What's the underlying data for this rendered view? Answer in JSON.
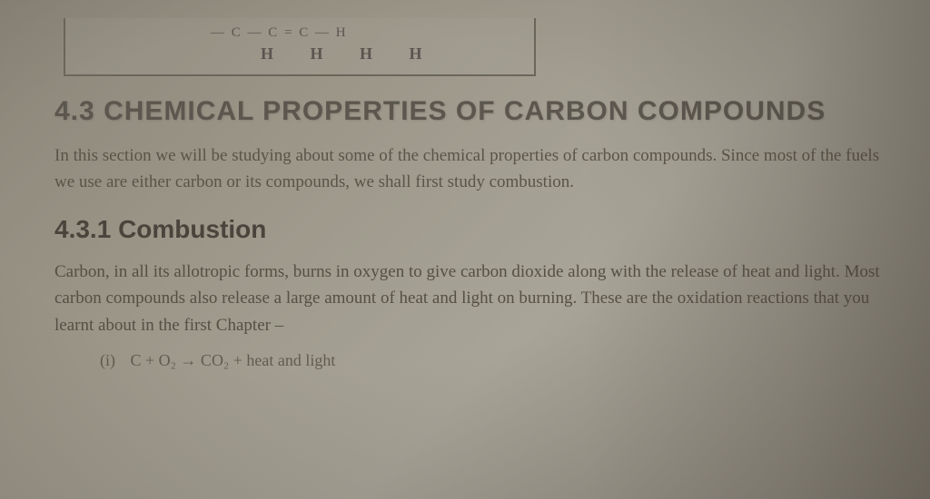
{
  "formula": {
    "top_fragment": "— C — C = C — H",
    "bottom_row": "H  H  H  H"
  },
  "section": {
    "number": "4.3",
    "title": "CHEMICAL PROPERTIES OF CARBON COMPOUNDS"
  },
  "intro": {
    "text": "In this section we will be studying about some of the chemical properties of carbon compounds. Since most of the fuels we use are either carbon or its compounds, we shall first study combustion."
  },
  "subsection": {
    "number": "4.3.1",
    "title": "Combustion"
  },
  "body": {
    "text": "Carbon, in all its allotropic forms, burns in oxygen to give carbon dioxide along with the release of heat and light. Most carbon compounds also release a large amount of heat and light on burning. These are the oxidation reactions that you learnt about in the first Chapter –"
  },
  "equation": {
    "label": "(i)",
    "expr": "C + O₂ → CO₂ + heat and light"
  },
  "style": {
    "bg_gradient_start": "#8a8578",
    "bg_gradient_end": "#8e897d",
    "heading_color": "#5c574e",
    "body_color": "#5a5448",
    "border_color": "#6b665c",
    "heading_fontsize": 30,
    "subheading_fontsize": 28,
    "body_fontsize": 19
  }
}
